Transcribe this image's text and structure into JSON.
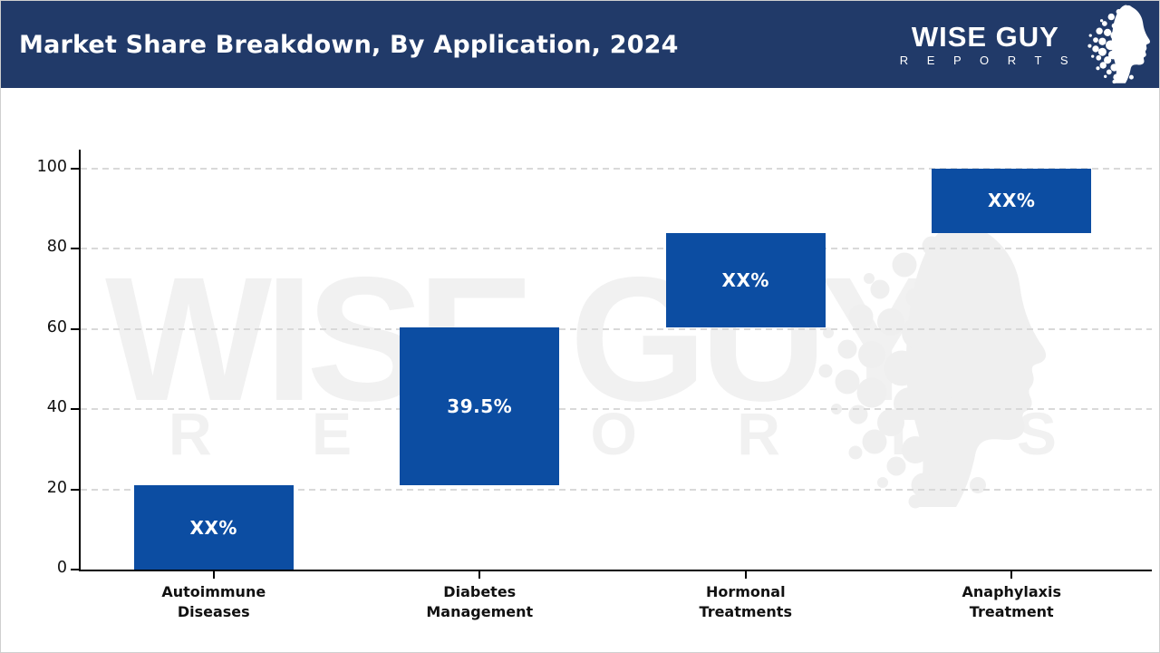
{
  "header": {
    "title": "Market Share Breakdown, By Application, 2024",
    "logo": {
      "name": "WISE GUY",
      "sub": "R E P O R T S"
    }
  },
  "watermark": {
    "main": "WISE GUY",
    "sub": "R E P O R T S"
  },
  "chart_data": {
    "type": "bar",
    "variant": "waterfall",
    "title": "Market Share Breakdown, By Application, 2024",
    "xlabel": "",
    "ylabel": "",
    "ylim": [
      0,
      104.75
    ],
    "yticks": [
      0,
      20,
      40,
      60,
      80,
      100
    ],
    "grid": "horizontal-dashed",
    "legend": "none",
    "categories": [
      "Autoimmune Diseases",
      "Diabetes Management",
      "Hormonal Treatments",
      "Anaphylaxis Treatment"
    ],
    "category_lines": [
      [
        "Autoimmune",
        "Diseases"
      ],
      [
        "Diabetes",
        "Management"
      ],
      [
        "Hormonal",
        "Treatments"
      ],
      [
        "Anaphylaxis",
        "Treatment"
      ]
    ],
    "segments": [
      {
        "category": "Autoimmune Diseases",
        "start": 0,
        "end": 21,
        "value": 21,
        "label": "XX%"
      },
      {
        "category": "Diabetes Management",
        "start": 21,
        "end": 60.5,
        "value": 39.5,
        "label": "39.5%"
      },
      {
        "category": "Hormonal Treatments",
        "start": 60.5,
        "end": 84,
        "value": 23.5,
        "label": "XX%"
      },
      {
        "category": "Anaphylaxis Treatment",
        "start": 84,
        "end": 100,
        "value": 16,
        "label": "XX%"
      }
    ]
  },
  "colors": {
    "header_bg": "#213a69",
    "bar": "#0c4da2",
    "grid": "#d9d9d9",
    "axis": "#000000",
    "tick_label": "#111111",
    "watermark": "#f1f1f1",
    "page_border": "#cfcfcf",
    "bar_label": "#ffffff"
  }
}
